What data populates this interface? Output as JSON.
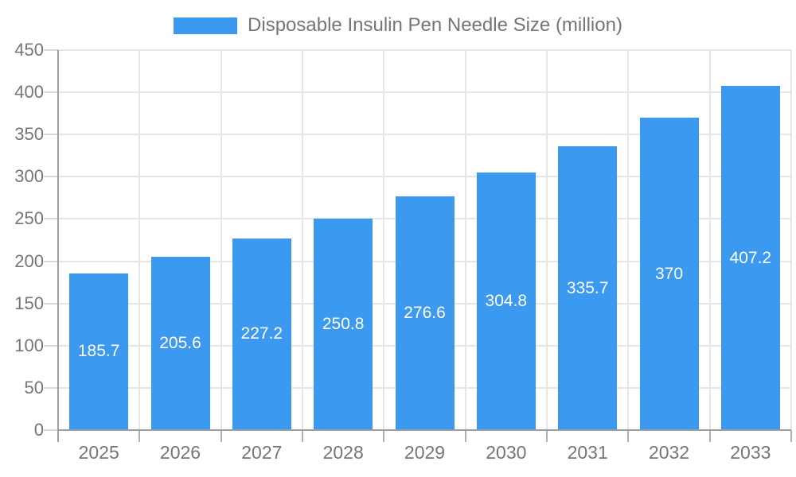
{
  "chart_data": {
    "type": "bar",
    "title": "Disposable Insulin Pen Needle Size (million)",
    "legend": {
      "position": "top",
      "label": "Disposable Insulin Pen Needle Size (million)"
    },
    "categories": [
      "2025",
      "2026",
      "2027",
      "2028",
      "2029",
      "2030",
      "2031",
      "2032",
      "2033"
    ],
    "series": [
      {
        "name": "Disposable Insulin Pen Needle Size (million)",
        "values": [
          185.7,
          205.6,
          227.2,
          250.8,
          276.6,
          304.8,
          335.7,
          370,
          407.2
        ],
        "labels": [
          "185.7",
          "205.6",
          "227.2",
          "250.8",
          "276.6",
          "304.8",
          "335.7",
          "370",
          "407.2"
        ]
      }
    ],
    "xlabel": "",
    "ylabel": "",
    "ylim": [
      0,
      450
    ],
    "y_ticks": [
      0,
      50,
      100,
      150,
      200,
      250,
      300,
      350,
      400,
      450
    ],
    "grid": true,
    "value_labels_inside_bars": true,
    "colors": {
      "bar": "#3B9AF0",
      "text": "#757575",
      "value_label": "#FFFFFF",
      "grid": "#E6E6E6",
      "light_tick": "#DADADA",
      "axis": "#9E9E9E",
      "tick": "#B0B0B0"
    }
  }
}
